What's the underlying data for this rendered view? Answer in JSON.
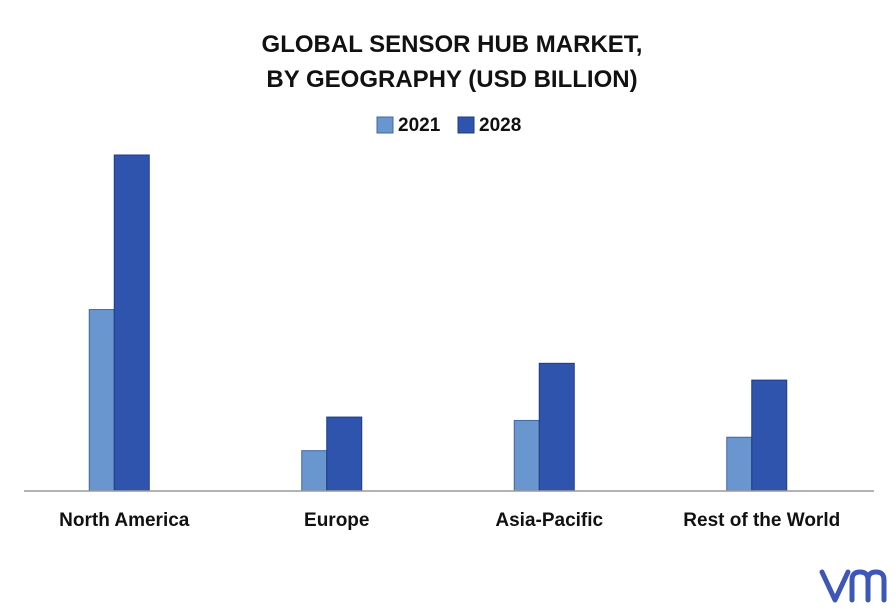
{
  "chart_data": {
    "type": "bar",
    "title": [
      "GLOBAL SENSOR HUB MARKET,",
      "BY GEOGRAPHY (USD BILLION)"
    ],
    "xlabel": "",
    "ylabel": "",
    "categories": [
      "North America",
      "Europe",
      "Asia-Pacific",
      "Rest of the World"
    ],
    "series": [
      {
        "name": "2021",
        "color": "#6a96cf",
        "values": [
          5.4,
          1.2,
          2.1,
          1.6
        ]
      },
      {
        "name": "2028",
        "color": "#2e54ad",
        "values": [
          10.0,
          2.2,
          3.8,
          3.3
        ]
      }
    ],
    "ylim": [
      0,
      10
    ],
    "grid": false,
    "legend_position": "top-center"
  },
  "brand": {
    "logo_icon": "vmr-logo-icon",
    "logo_color": "#3e56b6"
  }
}
